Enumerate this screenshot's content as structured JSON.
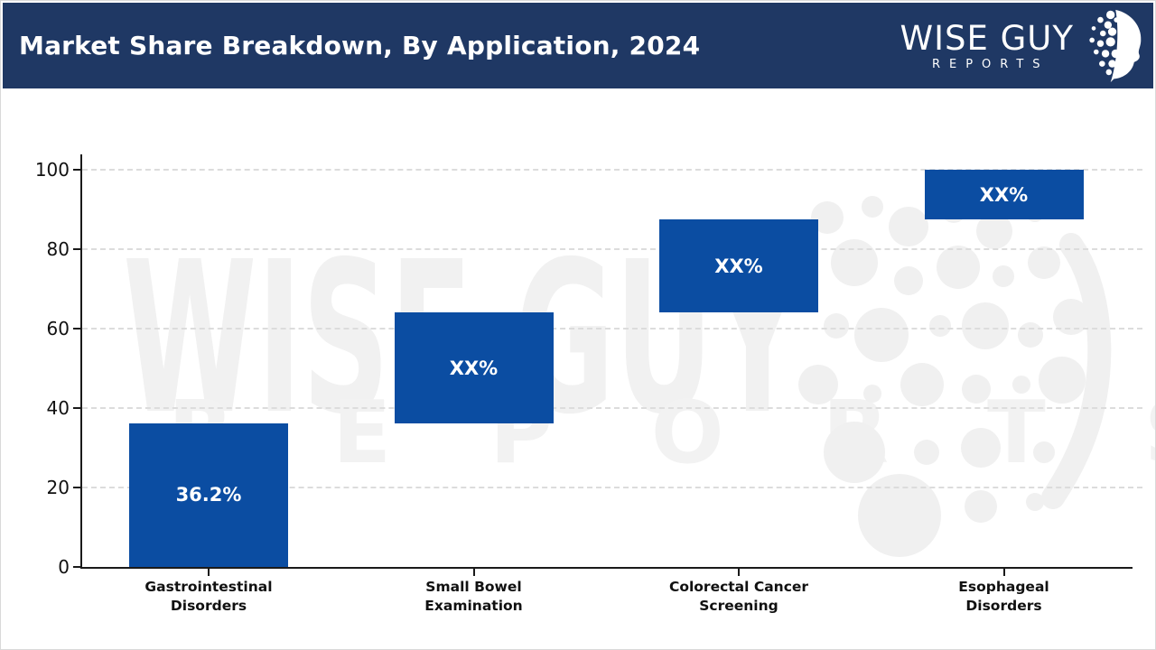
{
  "header": {
    "title": "Market Share Breakdown, By Application, 2024",
    "brand": {
      "line1": "WISE GUY",
      "line2": "REPORTS"
    }
  },
  "watermark": {
    "line1": "WISE GUY",
    "line2": "R E P O R T S"
  },
  "colors": {
    "header_bg": "#1f3864",
    "bar": "#0b4da2",
    "grid": "#dcdcdc",
    "axis": "#1a1a1a",
    "watermark": "#f1f1f1",
    "title_text": "#ffffff",
    "bar_label_text": "#ffffff"
  },
  "chart_data": {
    "type": "bar",
    "subtype": "waterfall-stacked-percentage",
    "title": "Market Share Breakdown, By Application, 2024",
    "unit": "%",
    "ylim": [
      0,
      100
    ],
    "yticks": [
      0,
      20,
      40,
      60,
      80,
      100
    ],
    "grid": "horizontal-dashed",
    "legend": "none",
    "categories": [
      "Gastrointestinal Disorders",
      "Small Bowel Examination",
      "Colorectal Cancer Screening",
      "Esophageal Disorders"
    ],
    "segments": [
      {
        "category": "Gastrointestinal Disorders",
        "category_lines": [
          "Gastrointestinal",
          "Disorders"
        ],
        "start": 0,
        "end": 36.2,
        "label": "36.2%"
      },
      {
        "category": "Small Bowel Examination",
        "category_lines": [
          "Small Bowel",
          "Examination"
        ],
        "start": 36.2,
        "end": 64.0,
        "label": "XX%"
      },
      {
        "category": "Colorectal Cancer Screening",
        "category_lines": [
          "Colorectal Cancer",
          "Screening"
        ],
        "start": 64.0,
        "end": 87.4,
        "label": "XX%"
      },
      {
        "category": "Esophageal Disorders",
        "category_lines": [
          "Esophageal",
          "Disorders"
        ],
        "start": 87.4,
        "end": 100.0,
        "label": "XX%"
      }
    ]
  }
}
